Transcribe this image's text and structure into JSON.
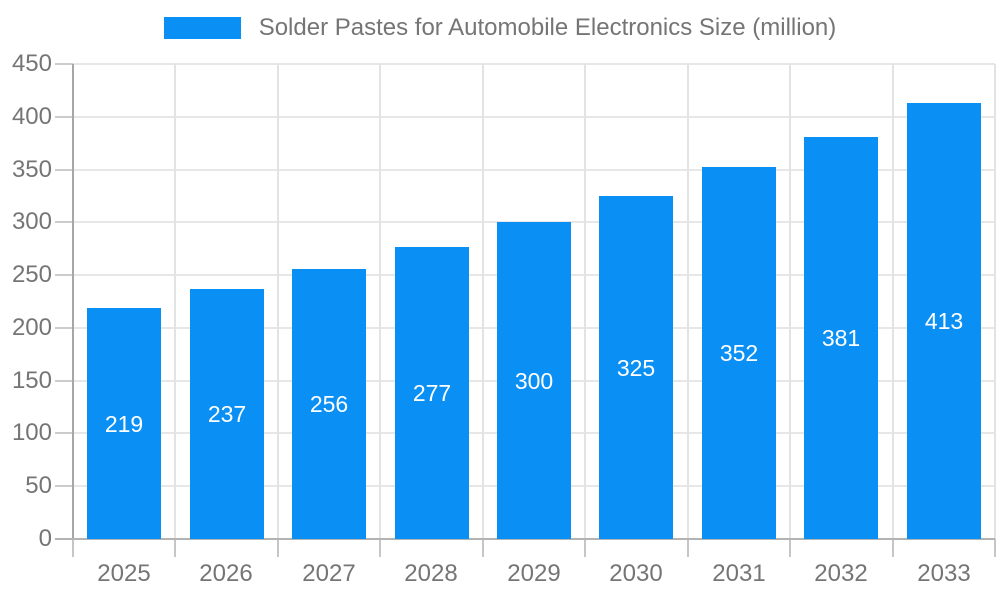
{
  "legend": {
    "label": "Solder Pastes for Automobile Electronics Size (million)"
  },
  "colors": {
    "bar": "#0a90f5",
    "axis_text": "#757575",
    "value_label_text": "#ffffff",
    "gridline": "#e7e7e7",
    "axis_line": "#a6a6a6",
    "background": "#ffffff"
  },
  "chart_data": {
    "type": "bar",
    "title": "Solder Pastes for Automobile Electronics Size (million)",
    "categories": [
      "2025",
      "2026",
      "2027",
      "2028",
      "2029",
      "2030",
      "2031",
      "2032",
      "2033"
    ],
    "values": [
      219,
      237,
      256,
      277,
      300,
      325,
      352,
      381,
      413
    ],
    "series": [
      {
        "name": "Solder Pastes for Automobile Electronics Size (million)",
        "values": [
          219,
          237,
          256,
          277,
          300,
          325,
          352,
          381,
          413
        ]
      }
    ],
    "xlabel": "",
    "ylabel": "",
    "ylim": [
      0,
      450
    ],
    "ytick_step": 50,
    "yticks": [
      0,
      50,
      100,
      150,
      200,
      250,
      300,
      350,
      400,
      450
    ],
    "grid": true,
    "legend_position": "top-center",
    "value_labels": "centered inside bars, white"
  }
}
